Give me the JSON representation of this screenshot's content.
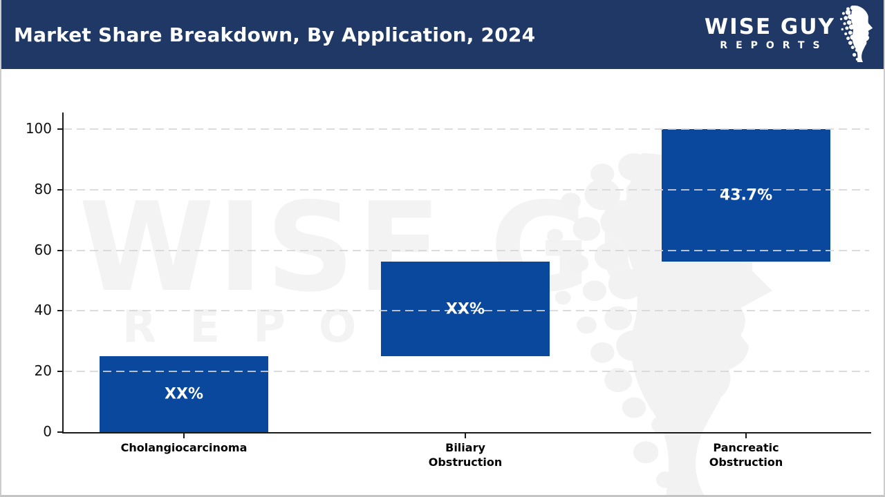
{
  "header": {
    "title": "Market Share Breakdown, By Application, 2024",
    "background_color": "#1f3865"
  },
  "logo": {
    "line1": "WISE GUY",
    "line2": "REPORTS",
    "face_icon": "dotted-head-profile"
  },
  "watermark": {
    "line1": "WISE GUY",
    "line2": "REPORTS",
    "face_icon": "dotted-head-profile"
  },
  "chart_data": {
    "type": "bar",
    "subtype": "stacked-waterfall",
    "title": "Market Share Breakdown, By Application, 2024",
    "categories": [
      "Cholangiocarcinoma",
      "Biliary Obstruction",
      "Pancreatic Obstruction"
    ],
    "segments": [
      {
        "category": "Cholangiocarcinoma",
        "lines": [
          "Cholangiocarcinoma"
        ],
        "start": 0,
        "end": 25,
        "value_label": "XX%"
      },
      {
        "category": "Biliary Obstruction",
        "lines": [
          "Biliary",
          "Obstruction"
        ],
        "start": 25,
        "end": 56.3,
        "value_label": "XX%"
      },
      {
        "category": "Pancreatic Obstruction",
        "lines": [
          "Pancreatic",
          "Obstruction"
        ],
        "start": 56.3,
        "end": 100,
        "value_label": "43.7%"
      }
    ],
    "ylim": [
      0,
      100
    ],
    "yticks": [
      0,
      20,
      40,
      60,
      80,
      100
    ],
    "xlabel": "",
    "ylabel": "",
    "bar_color": "#0a489e",
    "value_label_color": "#ffffff",
    "grid": {
      "style": "dashed",
      "axis": "y",
      "color": "#d9d9d9"
    },
    "legend": "none"
  }
}
